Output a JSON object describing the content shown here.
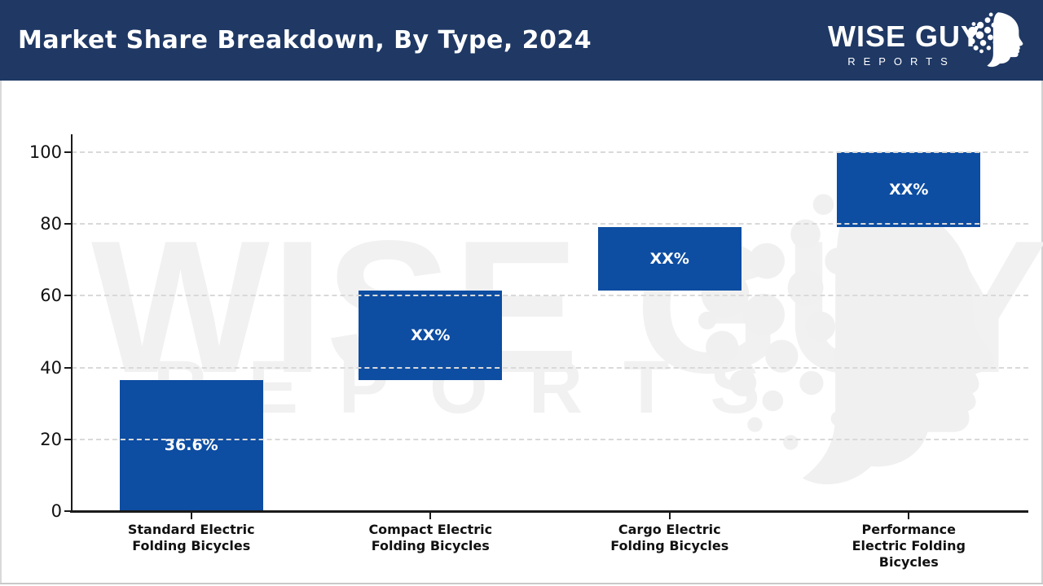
{
  "header": {
    "title": "Market Share Breakdown, By Type, 2024",
    "bg_color": "#1F3864",
    "logo": {
      "brand_line1": "WISE GUY",
      "brand_line2": "REPORTS"
    }
  },
  "watermark": {
    "line1": "WISE GUY",
    "line2": "REPORTS"
  },
  "chart_data": {
    "type": "bar",
    "variant": "waterfall",
    "title": "Market Share Breakdown, By Type, 2024",
    "xlabel": "",
    "ylabel": "",
    "ylim": [
      0,
      105
    ],
    "yticks": [
      0,
      20,
      40,
      60,
      80,
      100
    ],
    "grid": true,
    "grid_style": "dashed",
    "legend_position": "none",
    "bar_color": "#0d4da2",
    "bar_label_color": "#ffffff",
    "categories": [
      "Standard Electric Folding Bicycles",
      "Compact Electric Folding Bicycles",
      "Cargo Electric Folding Bicycles",
      "Performance Electric Folding Bicycles"
    ],
    "category_label_lines": [
      [
        "Standard Electric",
        "Folding Bicycles"
      ],
      [
        "Compact Electric",
        "Folding Bicycles"
      ],
      [
        "Cargo Electric",
        "Folding Bicycles"
      ],
      [
        "Performance",
        "Electric Folding",
        "Bicycles"
      ]
    ],
    "segments": [
      {
        "category": "Standard Electric Folding Bicycles",
        "start": 0,
        "end": 36.6,
        "label": "36.6%"
      },
      {
        "category": "Compact Electric Folding Bicycles",
        "start": 36.6,
        "end": 61.4,
        "label": "XX%"
      },
      {
        "category": "Cargo Electric Folding Bicycles",
        "start": 61.4,
        "end": 79.2,
        "label": "XX%"
      },
      {
        "category": "Performance Electric Folding Bicycles",
        "start": 79.2,
        "end": 100,
        "label": "XX%"
      }
    ]
  }
}
